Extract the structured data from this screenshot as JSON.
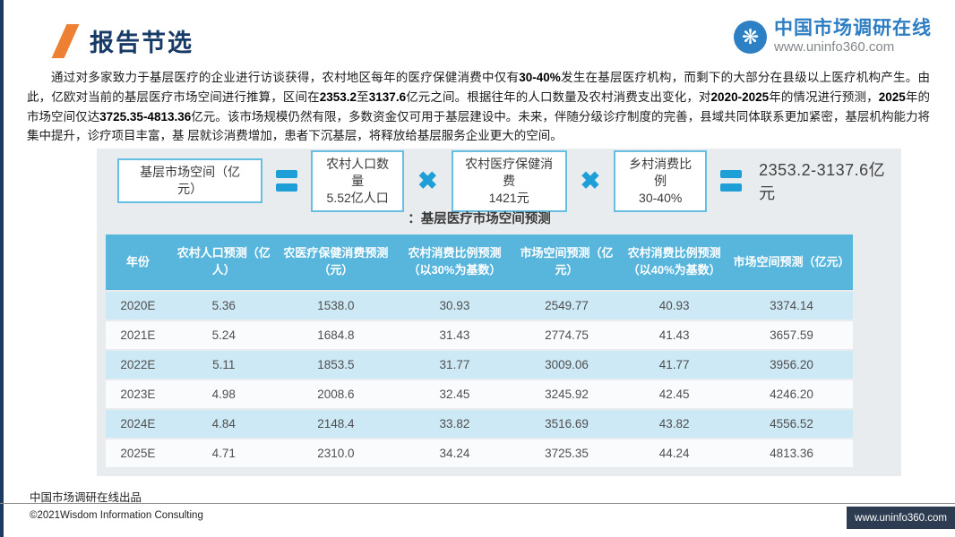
{
  "header": {
    "title": "报告节选",
    "logo_name": "中国市场调研在线",
    "logo_url": "www.uninfo360.com"
  },
  "icons": {
    "logo_glyph": "❋",
    "multiply_glyph": "✖"
  },
  "intro": {
    "segments": [
      {
        "text": "通过对多家致力于基层医疗的企业进行访谈获得，农村地区每年的医疗保健消费中仅有",
        "bold": false
      },
      {
        "text": "30-40%",
        "bold": true
      },
      {
        "text": "发生在基层医疗机构，而剩下的大部分在县级以上医疗机构产生。由此，亿欧对当前的基层医疗市场空间进行推算，区间在",
        "bold": false
      },
      {
        "text": "2353.2",
        "bold": true
      },
      {
        "text": "至",
        "bold": false
      },
      {
        "text": "3137.6",
        "bold": true
      },
      {
        "text": "亿元之间。根据往年的人口数量及农村消费支出变化，对",
        "bold": false
      },
      {
        "text": "2020-2025",
        "bold": true
      },
      {
        "text": "年的情况进行预测，",
        "bold": false
      },
      {
        "text": "2025",
        "bold": true
      },
      {
        "text": "年的市场空间仅达",
        "bold": false
      },
      {
        "text": "3725.35-4813.36",
        "bold": true
      },
      {
        "text": "亿元。该市场规模仍然有限，多数资金仅可用于基层建设中。未来，伴随分级诊疗制度的完善，县域共同体联系更加紧密，基层机构能力将集中提升，诊疗项目丰富，基 层就诊消费增加，患者下沉基层，将释放给基层服务企业更大的空间。",
        "bold": false
      }
    ]
  },
  "formula": {
    "result_label": "基层市场空间（亿元）",
    "factors": [
      {
        "line1": "农村人口数量",
        "line2": "5.52亿人口"
      },
      {
        "line1": "农村医疗保健消费",
        "line2": "1421元"
      },
      {
        "line1": "乡村消费比例",
        "line2": "30-40%"
      }
    ],
    "result_value": "2353.2-3137.6亿元"
  },
  "table": {
    "title": "：基层医疗市场空间预测",
    "headers": [
      [
        "年份"
      ],
      [
        "农村人口预测（亿人）"
      ],
      [
        "农医疗保健消费预测",
        "（元）"
      ],
      [
        "农村消费比例预测",
        "（以30%为基数）"
      ],
      [
        "市场空间预测（亿元）"
      ],
      [
        "农村消费比例预测",
        "（以40%为基数）"
      ],
      [
        "市场空间预测（亿元）"
      ]
    ],
    "rows": [
      [
        "2020E",
        "5.36",
        "1538.0",
        "30.93",
        "2549.77",
        "40.93",
        "3374.14"
      ],
      [
        "2021E",
        "5.24",
        "1684.8",
        "31.43",
        "2774.75",
        "41.43",
        "3657.59"
      ],
      [
        "2022E",
        "5.11",
        "1853.5",
        "31.77",
        "3009.06",
        "41.77",
        "3956.20"
      ],
      [
        "2023E",
        "4.98",
        "2008.6",
        "32.45",
        "3245.92",
        "42.45",
        "4246.20"
      ],
      [
        "2024E",
        "4.84",
        "2148.4",
        "33.82",
        "3516.69",
        "43.82",
        "4556.52"
      ],
      [
        "2025E",
        "4.71",
        "2310.0",
        "34.24",
        "3725.35",
        "44.24",
        "4813.36"
      ]
    ]
  },
  "footer": {
    "producer": "中国市场调研在线出品",
    "copyright": "©2021Wisdom Information Consulting",
    "site": "www.uninfo360.com"
  },
  "colors": {
    "accent_orange": "#ee8033",
    "title_navy": "#173a66",
    "operator_blue": "#1f9fd8",
    "table_header_blue": "#58b5dc",
    "row_stripe_blue": "#cde9f6",
    "panel_gray": "#e9ecee",
    "footer_box_navy": "#2d3c50",
    "logo_blue": "#2e80c4"
  }
}
